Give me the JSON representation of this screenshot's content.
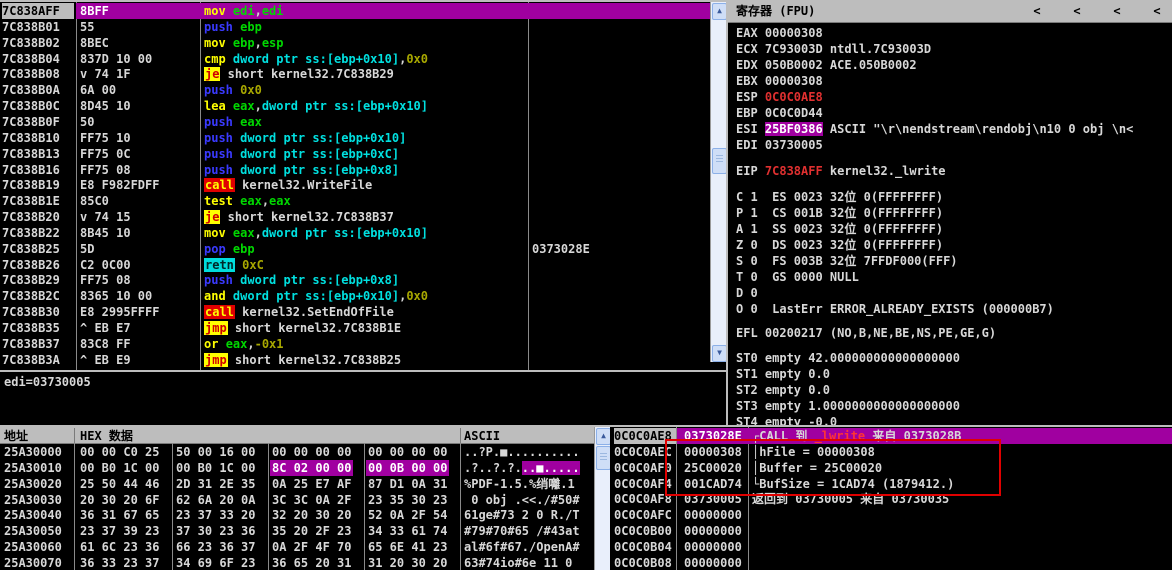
{
  "colors": {
    "accent_purple": "#a000a0",
    "selection_gray": "#bdbdbd",
    "annotation_red": "#e00000",
    "esp_eip_red": "#e03030"
  },
  "disasm": {
    "rows": [
      {
        "addr": "7C838AFF",
        "bytes": "8BFF",
        "sel": true,
        "ops": [
          [
            "mov ",
            "y"
          ],
          [
            "edi",
            "g"
          ],
          [
            ",",
            "w"
          ],
          [
            "edi",
            "g"
          ]
        ],
        "comment": ""
      },
      {
        "addr": "7C838B01",
        "bytes": "55",
        "ops": [
          [
            "push ",
            "b"
          ],
          [
            "ebp",
            "g"
          ]
        ],
        "comment": ""
      },
      {
        "addr": "7C838B02",
        "bytes": "8BEC",
        "ops": [
          [
            "mov ",
            "y"
          ],
          [
            "ebp",
            "g"
          ],
          [
            ",",
            "w"
          ],
          [
            "esp",
            "g"
          ]
        ],
        "comment": ""
      },
      {
        "addr": "7C838B04",
        "bytes": "837D 10 00",
        "ops": [
          [
            "cmp ",
            "y"
          ],
          [
            "dword ptr ss:[ebp+0x10]",
            "c"
          ],
          [
            ",",
            "w"
          ],
          [
            "0x0",
            "o"
          ]
        ],
        "comment": ""
      },
      {
        "addr": "7C838B08",
        "bytes": "74 1F",
        "arrow": "v",
        "ops": [
          [
            "je",
            "kj"
          ],
          [
            " short kernel32.7C838B29",
            "w"
          ]
        ],
        "comment": ""
      },
      {
        "addr": "7C838B0A",
        "bytes": "6A 00",
        "ops": [
          [
            "push ",
            "b"
          ],
          [
            "0x0",
            "o"
          ]
        ],
        "comment": ""
      },
      {
        "addr": "7C838B0C",
        "bytes": "8D45 10",
        "ops": [
          [
            "lea ",
            "y"
          ],
          [
            "eax",
            "g"
          ],
          [
            ",",
            "w"
          ],
          [
            "dword ptr ss:[ebp+0x10]",
            "c"
          ]
        ],
        "comment": ""
      },
      {
        "addr": "7C838B0F",
        "bytes": "50",
        "ops": [
          [
            "push ",
            "b"
          ],
          [
            "eax",
            "g"
          ]
        ],
        "comment": ""
      },
      {
        "addr": "7C838B10",
        "bytes": "FF75 10",
        "ops": [
          [
            "push ",
            "b"
          ],
          [
            "dword ptr ss:[ebp+0x10]",
            "c"
          ]
        ],
        "comment": ""
      },
      {
        "addr": "7C838B13",
        "bytes": "FF75 0C",
        "ops": [
          [
            "push ",
            "b"
          ],
          [
            "dword ptr ss:[ebp+0xC]",
            "c"
          ]
        ],
        "comment": ""
      },
      {
        "addr": "7C838B16",
        "bytes": "FF75 08",
        "ops": [
          [
            "push ",
            "b"
          ],
          [
            "dword ptr ss:[ebp+0x8]",
            "c"
          ]
        ],
        "comment": ""
      },
      {
        "addr": "7C838B19",
        "bytes": "E8 F982FDFF",
        "ops": [
          [
            "call",
            "kc"
          ],
          [
            " kernel32.WriteFile",
            "w"
          ]
        ],
        "comment": ""
      },
      {
        "addr": "7C838B1E",
        "bytes": "85C0",
        "ops": [
          [
            "test ",
            "y"
          ],
          [
            "eax",
            "g"
          ],
          [
            ",",
            "w"
          ],
          [
            "eax",
            "g"
          ]
        ],
        "comment": ""
      },
      {
        "addr": "7C838B20",
        "bytes": "74 15",
        "arrow": "v",
        "ops": [
          [
            "je",
            "kj"
          ],
          [
            " short kernel32.7C838B37",
            "w"
          ]
        ],
        "comment": ""
      },
      {
        "addr": "7C838B22",
        "bytes": "8B45 10",
        "ops": [
          [
            "mov ",
            "y"
          ],
          [
            "eax",
            "g"
          ],
          [
            ",",
            "w"
          ],
          [
            "dword ptr ss:[ebp+0x10]",
            "c"
          ]
        ],
        "comment": ""
      },
      {
        "addr": "7C838B25",
        "bytes": "5D",
        "ops": [
          [
            "pop ",
            "b"
          ],
          [
            "ebp",
            "g"
          ]
        ],
        "comment": "0373028E"
      },
      {
        "addr": "7C838B26",
        "bytes": "C2 0C00",
        "ops": [
          [
            "retn",
            "kr"
          ],
          [
            " ",
            "w"
          ],
          [
            "0xC",
            "o"
          ]
        ],
        "comment": ""
      },
      {
        "addr": "7C838B29",
        "bytes": "FF75 08",
        "ops": [
          [
            "push ",
            "b"
          ],
          [
            "dword ptr ss:[ebp+0x8]",
            "c"
          ]
        ],
        "comment": ""
      },
      {
        "addr": "7C838B2C",
        "bytes": "8365 10 00",
        "ops": [
          [
            "and ",
            "y"
          ],
          [
            "dword ptr ss:[ebp+0x10]",
            "c"
          ],
          [
            ",",
            "w"
          ],
          [
            "0x0",
            "o"
          ]
        ],
        "comment": ""
      },
      {
        "addr": "7C838B30",
        "bytes": "E8 2995FFFF",
        "ops": [
          [
            "call",
            "kc"
          ],
          [
            " kernel32.SetEndOfFile",
            "w"
          ]
        ],
        "comment": ""
      },
      {
        "addr": "7C838B35",
        "bytes": "EB E7",
        "arrow": "^",
        "ops": [
          [
            "jmp",
            "kj"
          ],
          [
            " short kernel32.7C838B1E",
            "w"
          ]
        ],
        "comment": ""
      },
      {
        "addr": "7C838B37",
        "bytes": "83C8 FF",
        "ops": [
          [
            "or ",
            "y"
          ],
          [
            "eax",
            "g"
          ],
          [
            ",",
            "w"
          ],
          [
            "-0x1",
            "o"
          ]
        ],
        "comment": ""
      },
      {
        "addr": "7C838B3A",
        "bytes": "EB E9",
        "arrow": "^",
        "ops": [
          [
            "jmp",
            "kj"
          ],
          [
            " short kernel32.7C838B25",
            "w"
          ]
        ],
        "comment": ""
      }
    ]
  },
  "info_pane": {
    "text": "edi=03730005"
  },
  "registers": {
    "title": "寄存器 (FPU)",
    "buttons": [
      "<",
      "<",
      "<",
      "<"
    ],
    "rows": [
      {
        "tokens": [
          [
            "EAX ",
            "w"
          ],
          [
            "00000308",
            "w"
          ]
        ]
      },
      {
        "tokens": [
          [
            "ECX ",
            "w"
          ],
          [
            "7C93003D",
            "w"
          ],
          [
            " ntdll.7C93003D",
            "w"
          ]
        ]
      },
      {
        "tokens": [
          [
            "EDX ",
            "w"
          ],
          [
            "050B0002",
            "w"
          ],
          [
            " ACE.050B0002",
            "w"
          ]
        ]
      },
      {
        "tokens": [
          [
            "EBX ",
            "w"
          ],
          [
            "00000308",
            "w"
          ]
        ]
      },
      {
        "tokens": [
          [
            "ESP ",
            "w"
          ],
          [
            "0C0C0AE8",
            "r"
          ]
        ]
      },
      {
        "tokens": [
          [
            "EBP ",
            "w"
          ],
          [
            "0C0C0D44",
            "w"
          ]
        ]
      },
      {
        "tokens": [
          [
            "ESI ",
            "w"
          ],
          [
            "25BF0386",
            "hlp"
          ],
          [
            " ASCII \"\\r\\nendstream\\rendobj\\n10 0 obj \\n<",
            "w"
          ]
        ]
      },
      {
        "tokens": [
          [
            "EDI ",
            "w"
          ],
          [
            "03730005",
            "w"
          ]
        ]
      },
      {
        "tokens": [
          [
            "EIP ",
            "w"
          ],
          [
            "7C838AFF",
            "r"
          ],
          [
            " kernel32._lwrite",
            "w"
          ]
        ]
      },
      {
        "tokens": [
          [
            "C 1  ES 0023 32位 0(FFFFFFFF)",
            "w"
          ]
        ]
      },
      {
        "tokens": [
          [
            "P 1  CS 001B 32位 0(FFFFFFFF)",
            "w"
          ]
        ]
      },
      {
        "tokens": [
          [
            "A 1  SS 0023 32位 0(FFFFFFFF)",
            "w"
          ]
        ]
      },
      {
        "tokens": [
          [
            "Z 0  DS 0023 32位 0(FFFFFFFF)",
            "w"
          ]
        ]
      },
      {
        "tokens": [
          [
            "S 0  FS 003B 32位 7FFDF000(FFF)",
            "w"
          ]
        ]
      },
      {
        "tokens": [
          [
            "T 0  GS 0000 NULL",
            "w"
          ]
        ]
      },
      {
        "tokens": [
          [
            "D 0",
            "w"
          ]
        ]
      },
      {
        "tokens": [
          [
            "O 0  LastErr ERROR_ALREADY_EXISTS (000000B7)",
            "w"
          ]
        ]
      },
      {
        "tokens": [
          [
            "EFL 00200217 (NO,B,NE,BE,NS,PE,GE,G)",
            "w"
          ]
        ]
      },
      {
        "tokens": [
          [
            "ST0 empty 42.000000000000000000",
            "w"
          ]
        ]
      },
      {
        "tokens": [
          [
            "ST1 empty 0.0",
            "w"
          ]
        ]
      },
      {
        "tokens": [
          [
            "ST2 empty 0.0",
            "w"
          ]
        ]
      },
      {
        "tokens": [
          [
            "ST3 empty 1.0000000000000000000",
            "w"
          ]
        ]
      },
      {
        "tokens": [
          [
            "ST4 empty -0.0",
            "w"
          ]
        ]
      }
    ]
  },
  "dump": {
    "headers": {
      "addr": "地址",
      "hex": "HEX 数据",
      "ascii": "ASCII"
    },
    "rows": [
      {
        "addr": "25A30000",
        "groups": [
          "00 00 C0 25",
          "50 00 16 00",
          "00 00 00 00",
          "00 00 00 00"
        ],
        "hl_groups": [],
        "ascii": [
          {
            "t": "..?P.■..........",
            "hl": false
          }
        ]
      },
      {
        "addr": "25A30010",
        "groups": [
          "00 B0 1C 00",
          "00 B0 1C 00",
          "8C 02 00 00",
          "00 0B 00 00"
        ],
        "hl_groups": [
          2,
          3
        ],
        "ascii": [
          {
            "t": ".?..?.?.",
            "hl": false
          },
          {
            "t": "..■.....",
            "hl": true
          }
        ]
      },
      {
        "addr": "25A30020",
        "groups": [
          "25 50 44 46",
          "2D 31 2E 35",
          "0A 25 E7 AF",
          "87 D1 0A 31"
        ],
        "hl_groups": [],
        "ascii": [
          {
            "t": "%PDF-1.5.%绡囄.1",
            "hl": false
          }
        ]
      },
      {
        "addr": "25A30030",
        "groups": [
          "20 30 20 6F",
          "62 6A 20 0A",
          "3C 3C 0A 2F",
          "23 35 30 23"
        ],
        "hl_groups": [],
        "ascii": [
          {
            "t": " 0 obj .<<./#50#",
            "hl": false
          }
        ]
      },
      {
        "addr": "25A30040",
        "groups": [
          "36 31 67 65",
          "23 37 33 20",
          "32 20 30 20",
          "52 0A 2F 54"
        ],
        "hl_groups": [],
        "ascii": [
          {
            "t": "61ge#73 2 0 R./T",
            "hl": false
          }
        ]
      },
      {
        "addr": "25A30050",
        "groups": [
          "23 37 39 23",
          "37 30 23 36",
          "35 20 2F 23",
          "34 33 61 74"
        ],
        "hl_groups": [],
        "ascii": [
          {
            "t": "#79#70#65 /#43at",
            "hl": false
          }
        ]
      },
      {
        "addr": "25A30060",
        "groups": [
          "61 6C 23 36",
          "66 23 36 37",
          "0A 2F 4F 70",
          "65 6E 41 23"
        ],
        "hl_groups": [],
        "ascii": [
          {
            "t": "al#6f#67./OpenA#",
            "hl": false
          }
        ]
      },
      {
        "addr": "25A30070",
        "groups": [
          "36 33 23 37",
          "34 69 6F 23",
          "36 65 20 31",
          "31 20 30 20"
        ],
        "hl_groups": [],
        "ascii": [
          {
            "t": "63#74io#6e 11 0 ",
            "hl": false
          }
        ]
      }
    ]
  },
  "stack": {
    "rows": [
      {
        "addr": "0C0C0AE8",
        "value": "0373028E",
        "sel": true,
        "comment": [
          [
            "┌CALL 到 ",
            "w"
          ],
          [
            "_lwrite",
            "lr"
          ],
          [
            " 来自 0373028B",
            "w"
          ]
        ]
      },
      {
        "addr": "0C0C0AEC",
        "value": "00000308",
        "comment": [
          [
            "│hFile = 00000308",
            "w"
          ]
        ]
      },
      {
        "addr": "0C0C0AF0",
        "value": "25C00020",
        "comment": [
          [
            "│Buffer = 25C00020",
            "w"
          ]
        ]
      },
      {
        "addr": "0C0C0AF4",
        "value": "001CAD74",
        "comment": [
          [
            "└BufSize = 1CAD74 (1879412.)",
            "w"
          ]
        ]
      },
      {
        "addr": "0C0C0AF8",
        "value": "03730005",
        "comment": [
          [
            "返回到 03730005 来自 03730035",
            "w"
          ]
        ]
      },
      {
        "addr": "0C0C0AFC",
        "value": "00000000",
        "comment": []
      },
      {
        "addr": "0C0C0B00",
        "value": "00000000",
        "comment": []
      },
      {
        "addr": "0C0C0B04",
        "value": "00000000",
        "comment": []
      },
      {
        "addr": "0C0C0B08",
        "value": "00000000",
        "comment": []
      }
    ]
  }
}
